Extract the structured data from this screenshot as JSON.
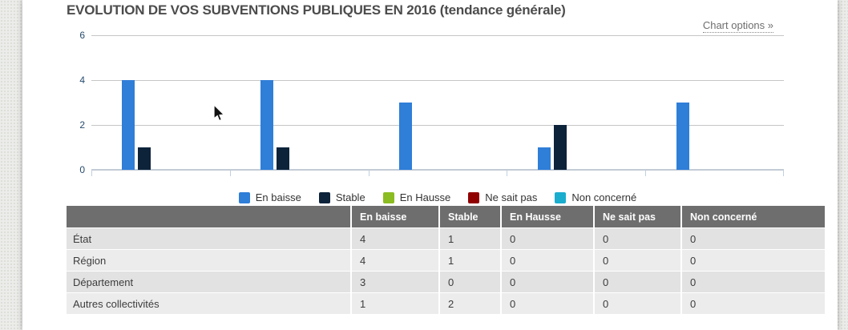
{
  "page": {
    "title": "EVOLUTION DE VOS SUBVENTIONS PUBLIQUES EN 2016 (tendance générale)",
    "chart_options_label": "Chart options »"
  },
  "colors": {
    "en_baisse": "#2f7ed8",
    "stable": "#0d233a",
    "en_hausse": "#8bbc21",
    "ne_sait_pas": "#910000",
    "non_concerne": "#1aadce",
    "table_header_bg": "#6e6e6e",
    "row_odd_bg": "#e2e2e2",
    "row_even_bg": "#ececec",
    "gridline": "#c6c6c6",
    "axis_line": "#c3ccd6",
    "y_label": "#274b6d"
  },
  "chart_data": {
    "type": "bar",
    "title": "EVOLUTION DE VOS SUBVENTIONS PUBLIQUES EN 2016 (tendance générale)",
    "categories": [
      "État",
      "Région",
      "Département",
      "Autres collectivités",
      ""
    ],
    "series": [
      {
        "name": "En baisse",
        "color": "#2f7ed8",
        "values": [
          4,
          4,
          3,
          1,
          3
        ]
      },
      {
        "name": "Stable",
        "color": "#0d233a",
        "values": [
          1,
          1,
          0,
          2,
          0
        ]
      },
      {
        "name": "En Hausse",
        "color": "#8bbc21",
        "values": [
          0,
          0,
          0,
          0,
          0
        ]
      },
      {
        "name": "Ne sait pas",
        "color": "#910000",
        "values": [
          0,
          0,
          0,
          0,
          0
        ]
      },
      {
        "name": "Non concerné",
        "color": "#1aadce",
        "values": [
          0,
          0,
          0,
          0,
          0
        ]
      }
    ],
    "ylabel": "",
    "xlabel": "",
    "ylim": [
      0,
      6
    ],
    "yticks": [
      0,
      2,
      4,
      6
    ],
    "grid": true,
    "legend_position": "bottom"
  },
  "table": {
    "columns": [
      "",
      "En baisse",
      "Stable",
      "En Hausse",
      "Ne sait pas",
      "Non concerné"
    ],
    "rows": [
      {
        "label": "État",
        "values": [
          4,
          1,
          0,
          0,
          0
        ]
      },
      {
        "label": "Région",
        "values": [
          4,
          1,
          0,
          0,
          0
        ]
      },
      {
        "label": "Département",
        "values": [
          3,
          0,
          0,
          0,
          0
        ]
      },
      {
        "label": "Autres collectivités",
        "values": [
          1,
          2,
          0,
          0,
          0
        ]
      }
    ]
  }
}
